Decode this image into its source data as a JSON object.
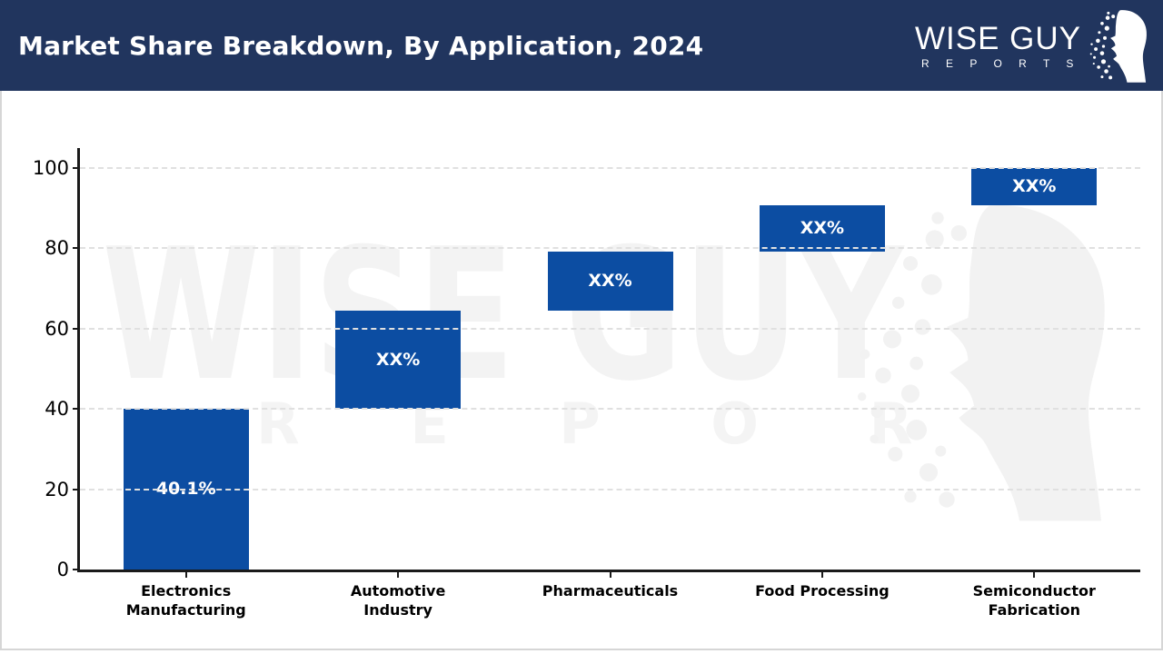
{
  "header": {
    "title": "Market Share Breakdown, By Application, 2024",
    "logo": {
      "line1": "WISE GUY",
      "line2": "R E P O R T S"
    }
  },
  "watermark": {
    "line1": "WISE GUY",
    "line2": "R E P O R T S"
  },
  "colors": {
    "header_bg": "#21355E",
    "bar": "#0C4DA2",
    "bar_label": "#FFFFFF",
    "grid": "#E0E0E0",
    "axis": "#1A1A1A",
    "watermark": "#F3F3F3",
    "frame_border": "#D6D6D6"
  },
  "chart_data": {
    "type": "bar",
    "variant": "waterfall",
    "title": "Market Share Breakdown, By Application, 2024",
    "categories": [
      "Electronics Manufacturing",
      "Automotive Industry",
      "Pharmaceuticals",
      "Food Processing",
      "Semiconductor Fabrication"
    ],
    "category_label_lines": [
      [
        "Electronics",
        "Manufacturing"
      ],
      [
        "Automotive",
        "Industry"
      ],
      [
        "Pharmaceuticals"
      ],
      [
        "Food Processing"
      ],
      [
        "Semiconductor",
        "Fabrication"
      ]
    ],
    "bars": [
      {
        "start": 0,
        "end": 40.1,
        "label": "40.1%"
      },
      {
        "start": 40.1,
        "end": 64.5,
        "label": "XX%"
      },
      {
        "start": 64.5,
        "end": 79.2,
        "label": "XX%"
      },
      {
        "start": 79.2,
        "end": 90.8,
        "label": "XX%"
      },
      {
        "start": 90.8,
        "end": 100,
        "label": "XX%"
      }
    ],
    "values": [
      40.1,
      24.4,
      14.7,
      11.6,
      9.2
    ],
    "yticks": [
      0,
      20,
      40,
      60,
      80,
      100
    ],
    "ylim": [
      0,
      105
    ],
    "grid": {
      "horizontal": true,
      "style": "dashed",
      "drawn_over_bars": true
    },
    "legend": "none",
    "xlabel": "",
    "ylabel": ""
  }
}
